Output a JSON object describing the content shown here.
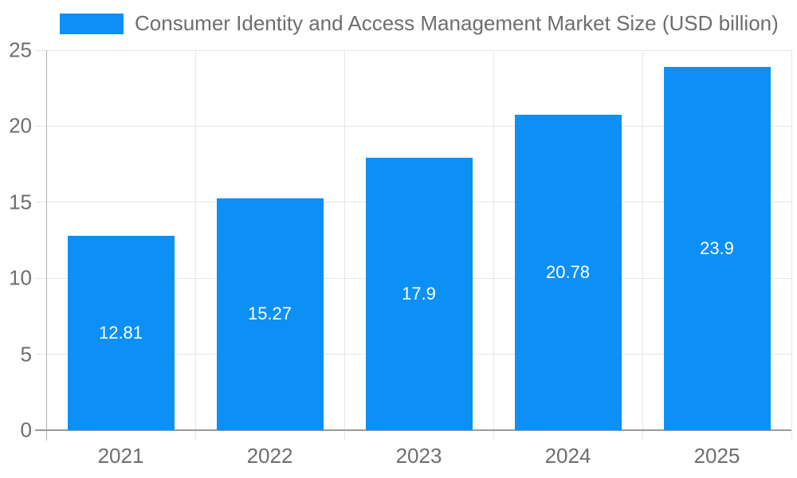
{
  "legend": {
    "label": "Consumer Identity and Access Management Market Size (USD billion)"
  },
  "chart_data": {
    "type": "bar",
    "title": "Consumer Identity and Access Management Market Size (USD billion)",
    "categories": [
      "2021",
      "2022",
      "2023",
      "2024",
      "2025"
    ],
    "values": [
      12.81,
      15.27,
      17.9,
      20.78,
      23.9
    ],
    "value_labels": [
      "12.81",
      "15.27",
      "17.9",
      "20.78",
      "23.9"
    ],
    "xlabel": "",
    "ylabel": "",
    "ylim": [
      0,
      25
    ],
    "y_ticks": [
      "0",
      "5",
      "10",
      "15",
      "20",
      "25"
    ],
    "grid": "on",
    "legend_position": "top-left",
    "value_label_position": "center-of-bar"
  },
  "colors": {
    "background": "#ffffff",
    "bar": "#0d90f5",
    "bar_label": "#ffffff",
    "axis_text": "#6e6e6e",
    "grid_line": "#e6e6e6",
    "axis_line": "#b3b3b3",
    "baseline": "#9a9a9a"
  }
}
